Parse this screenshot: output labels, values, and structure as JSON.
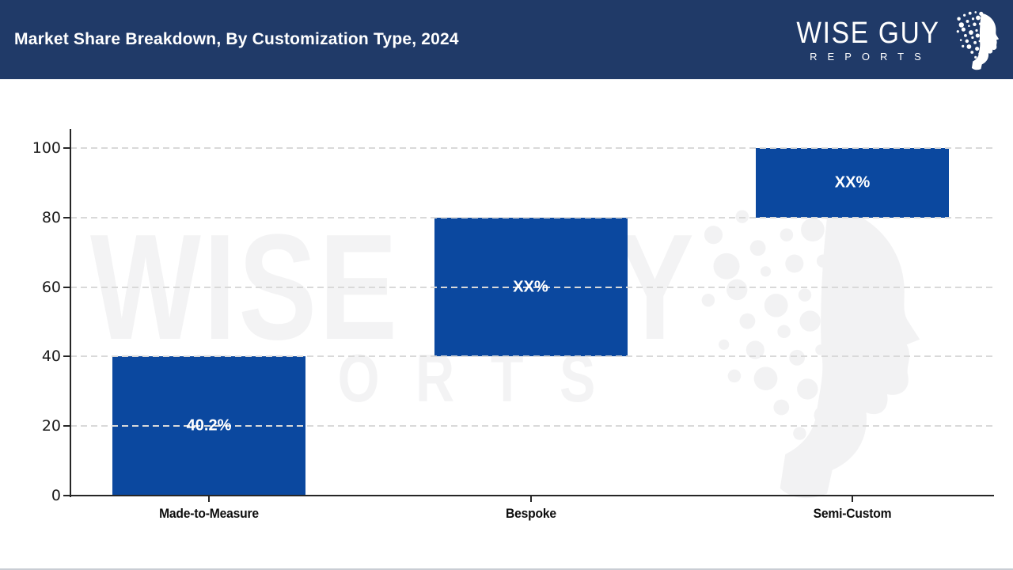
{
  "header": {
    "title": "Market Share Breakdown, By Customization Type, 2024",
    "logo": {
      "primary": "WISE GUY",
      "secondary": "REPORTS"
    },
    "bg_color": "#203a68"
  },
  "watermark": {
    "primary": "WISE GUY",
    "secondary": "REPORTS"
  },
  "chart_data": {
    "type": "bar",
    "subtype": "floating-waterfall",
    "title": "Market Share Breakdown, By Customization Type, 2024",
    "categories": [
      "Made-to-Measure",
      "Bespoke",
      "Semi-Custom"
    ],
    "bars": [
      {
        "category": "Made-to-Measure",
        "start": 0,
        "end": 40.2,
        "value": 40.2,
        "label": "40.2%"
      },
      {
        "category": "Bespoke",
        "start": 40,
        "end": 80,
        "value": 40,
        "label": "XX%"
      },
      {
        "category": "Semi-Custom",
        "start": 80,
        "end": 100,
        "value": 20,
        "label": "XX%"
      }
    ],
    "xlabel": "",
    "ylabel": "",
    "y_ticks": [
      0,
      20,
      40,
      60,
      80,
      100
    ],
    "ylim": [
      0,
      105
    ],
    "grid": "horizontal-dashed, drawn above bars",
    "legend": "none",
    "bar_color": "#0b489f",
    "bar_label_color": "#ffffff"
  },
  "colors": {
    "header_bg": "#203a68",
    "bar": "#0b489f",
    "grid": "#d9d9d9",
    "axis": "#262626",
    "watermark": "#f3f3f4"
  }
}
